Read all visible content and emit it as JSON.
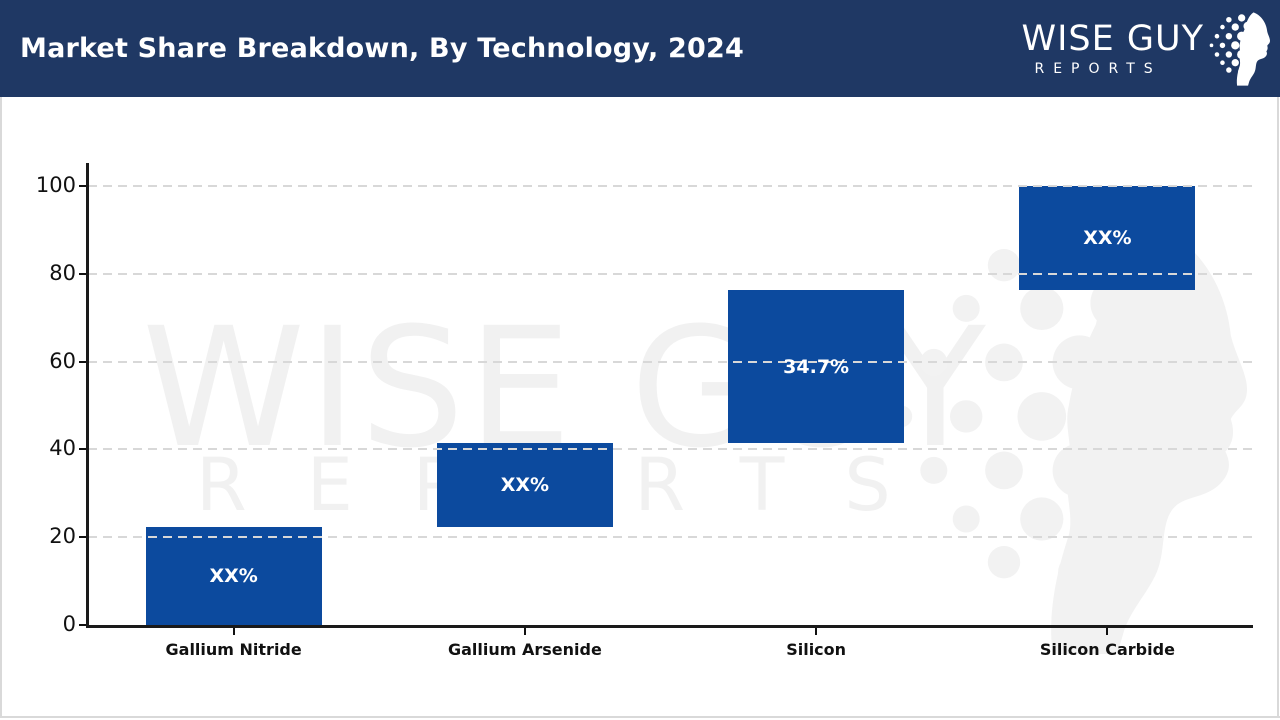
{
  "header": {
    "title": "Market Share Breakdown, By Technology, 2024",
    "bg_color": "#1F3864",
    "brand": {
      "line1": "WISE GUY",
      "line2": "REPORTS"
    }
  },
  "watermark": {
    "line1": "WISE GUY",
    "line2": "REPORTS"
  },
  "chart_data": {
    "type": "bar",
    "subtype": "floating-waterfall",
    "title": "Market Share Breakdown, By Technology, 2024",
    "categories": [
      "Gallium Nitride",
      "Gallium Arsenide",
      "Silicon",
      "Silicon Carbide"
    ],
    "segments": [
      {
        "category": "Gallium Nitride",
        "start": 0,
        "end": 22.4,
        "label": "XX%"
      },
      {
        "category": "Gallium Arsenide",
        "start": 22.4,
        "end": 41.5,
        "label": "XX%"
      },
      {
        "category": "Silicon",
        "start": 41.5,
        "end": 76.2,
        "label": "34.7%"
      },
      {
        "category": "Silicon Carbide",
        "start": 76.2,
        "end": 100,
        "label": "XX%"
      }
    ],
    "values": [
      22.4,
      19.1,
      34.7,
      23.8
    ],
    "y_ticks": [
      0,
      20,
      40,
      60,
      80,
      100
    ],
    "ylim": [
      0,
      105
    ],
    "xlabel": "",
    "ylabel": "",
    "grid": "horizontal dashed, drawn over bars",
    "legend": "none",
    "bar_color": "#0C4A9E",
    "bar_label_color": "#FFFFFF",
    "grid_color": "#D8D8D8",
    "axis_color": "#1A1A1A",
    "watermark_color": "#F1F1F1"
  }
}
